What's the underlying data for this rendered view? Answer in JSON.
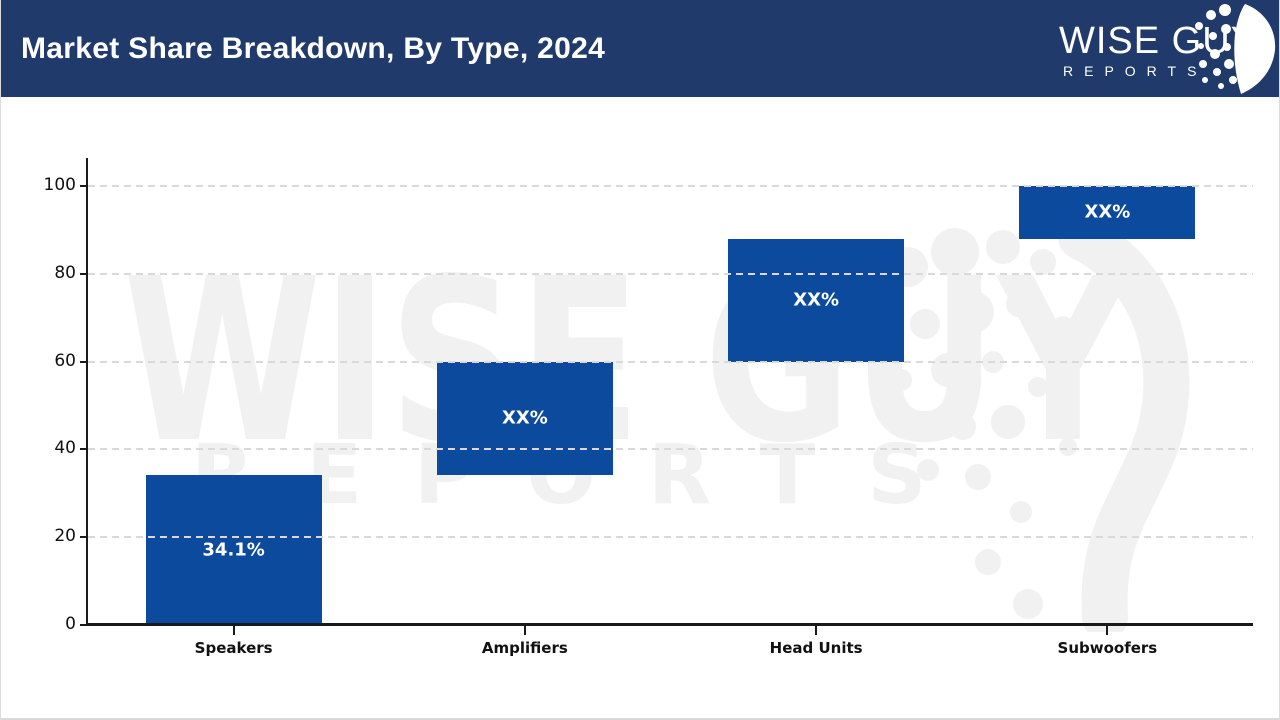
{
  "header": {
    "title": "Market Share Breakdown, By Type, 2024",
    "logo": {
      "name": "WISE GUY",
      "subtitle": "REPORTS"
    }
  },
  "watermark": {
    "line1": "WISE GUY",
    "line2": "REPORTS"
  },
  "chart_data": {
    "type": "bar",
    "subtype": "waterfall",
    "title": "Market Share Breakdown, By Type, 2024",
    "categories": [
      "Speakers",
      "Amplifiers",
      "Head Units",
      "Subwoofers"
    ],
    "segments": [
      {
        "category": "Speakers",
        "from": 0,
        "to": 34.1,
        "label": "34.1%"
      },
      {
        "category": "Amplifiers",
        "from": 34.1,
        "to": 60,
        "label": "XX%"
      },
      {
        "category": "Head Units",
        "from": 60,
        "to": 88,
        "label": "XX%"
      },
      {
        "category": "Subwoofers",
        "from": 88,
        "to": 100,
        "label": "XX%"
      }
    ],
    "xlabel": "",
    "ylabel": "",
    "ylim": [
      0,
      100
    ],
    "yticks": [
      0,
      20,
      40,
      60,
      80,
      100
    ],
    "grid": "dashed-horizontal",
    "legend": false
  },
  "colors": {
    "header_bg": "#1f3a6b",
    "bar": "#0c4a9e",
    "grid": "#d9d9d9",
    "axis": "#1a1a1a",
    "bar_label": "#ffffff",
    "watermark": "#f1f1f1"
  }
}
